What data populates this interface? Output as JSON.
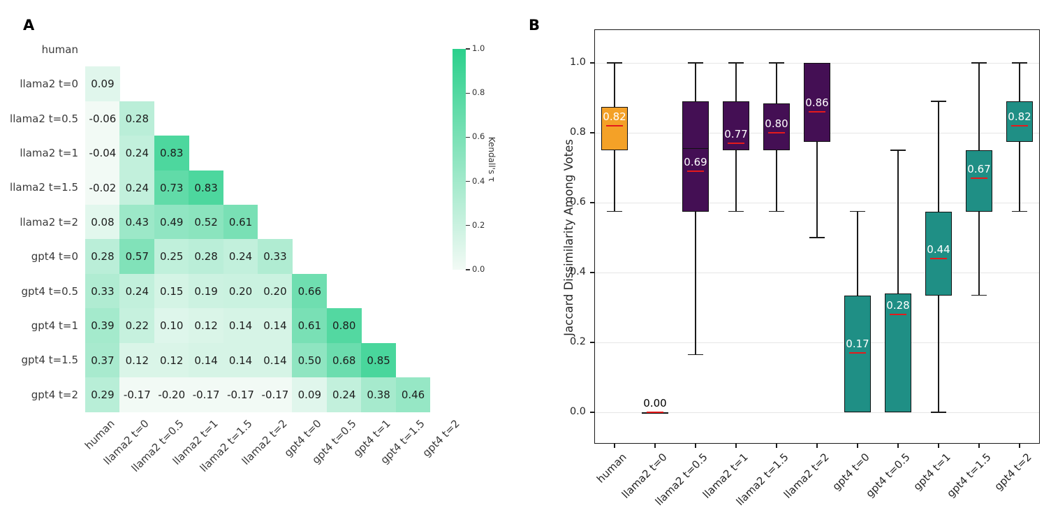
{
  "figure": {
    "panel_a_label": "A",
    "panel_b_label": "B"
  },
  "colors": {
    "cmap_min": "#f2faf5",
    "cmap_max": "#2bd08c",
    "mean_line": "#e41a1c",
    "grid": "#e6e6e6",
    "frame": "#1a1a1a",
    "box_border": "#111111",
    "human_box": "#f4a127",
    "llama2_box": "#440f54",
    "gpt4_box": "#1f8f85"
  },
  "chart_data": [
    {
      "type": "heatmap",
      "panel": "A",
      "labels": [
        "human",
        "llama2 t=0",
        "llama2 t=0.5",
        "llama2 t=1",
        "llama2 t=1.5",
        "llama2 t=2",
        "gpt4 t=0",
        "gpt4 t=0.5",
        "gpt4 t=1",
        "gpt4 t=1.5",
        "gpt4 t=2"
      ],
      "colorbar_label": "Kendall's τ",
      "colorbar_ticks": [
        "1.0",
        "0.8",
        "0.6",
        "0.4",
        "0.2",
        "0.0"
      ],
      "vmin": 0,
      "vmax": 1,
      "lower_triangle": [
        [],
        [
          0.09
        ],
        [
          -0.06,
          0.28
        ],
        [
          -0.04,
          0.24,
          0.83
        ],
        [
          -0.02,
          0.24,
          0.73,
          0.83
        ],
        [
          0.08,
          0.43,
          0.49,
          0.52,
          0.61
        ],
        [
          0.28,
          0.57,
          0.25,
          0.28,
          0.24,
          0.33
        ],
        [
          0.33,
          0.24,
          0.15,
          0.19,
          0.2,
          0.2,
          0.66
        ],
        [
          0.39,
          0.22,
          0.1,
          0.12,
          0.14,
          0.14,
          0.61,
          0.8
        ],
        [
          0.37,
          0.12,
          0.12,
          0.14,
          0.14,
          0.14,
          0.5,
          0.68,
          0.85
        ],
        [
          0.29,
          -0.17,
          -0.2,
          -0.17,
          -0.17,
          -0.17,
          0.09,
          0.24,
          0.38,
          0.46
        ]
      ]
    },
    {
      "type": "boxplot",
      "panel": "B",
      "ylabel": "Jaccard Dissimilarity Among Votes",
      "yticks": [
        "0.0",
        "0.2",
        "0.4",
        "0.6",
        "0.8",
        "1.0"
      ],
      "ylim": [
        -0.09,
        1.1
      ],
      "grid": "horizontal",
      "categories": [
        "human",
        "llama2 t=0",
        "llama2 t=0.5",
        "llama2 t=1",
        "llama2 t=1.5",
        "llama2 t=2",
        "gpt4 t=0",
        "gpt4 t=0.5",
        "gpt4 t=1",
        "gpt4 t=1.5",
        "gpt4 t=2"
      ],
      "boxes": [
        {
          "category": "human",
          "whislo": 0.575,
          "q1": 0.75,
          "median": null,
          "mean": 0.82,
          "q3": 0.875,
          "whishi": 1.0,
          "color_key": "human_box",
          "label": "0.82",
          "label_color": "#ffffff"
        },
        {
          "category": "llama2 t=0",
          "whislo": 0.0,
          "q1": 0.0,
          "median": 0.0,
          "mean": 0.0,
          "q3": 0.0,
          "whishi": 0.0,
          "color_key": "llama2_box",
          "label": "0.00",
          "label_color": "#000000"
        },
        {
          "category": "llama2 t=0.5",
          "whislo": 0.165,
          "q1": 0.575,
          "median": 0.755,
          "mean": 0.69,
          "q3": 0.89,
          "whishi": 1.0,
          "color_key": "llama2_box",
          "label": "0.69",
          "label_color": "#ffffff"
        },
        {
          "category": "llama2 t=1",
          "whislo": 0.575,
          "q1": 0.75,
          "median": null,
          "mean": 0.77,
          "q3": 0.89,
          "whishi": 1.0,
          "color_key": "llama2_box",
          "label": "0.77",
          "label_color": "#ffffff"
        },
        {
          "category": "llama2 t=1.5",
          "whislo": 0.575,
          "q1": 0.75,
          "median": null,
          "mean": 0.8,
          "q3": 0.885,
          "whishi": 1.0,
          "color_key": "llama2_box",
          "label": "0.80",
          "label_color": "#ffffff"
        },
        {
          "category": "llama2 t=2",
          "whislo": 0.5,
          "q1": 0.775,
          "median": null,
          "mean": 0.86,
          "q3": 1.0,
          "whishi": 1.0,
          "color_key": "llama2_box",
          "label": "0.86",
          "label_color": "#ffffff"
        },
        {
          "category": "gpt4 t=0",
          "whislo": 0.0,
          "q1": 0.0,
          "median": null,
          "mean": 0.17,
          "q3": 0.335,
          "whishi": 0.575,
          "color_key": "gpt4_box",
          "label": "0.17",
          "label_color": "#ffffff"
        },
        {
          "category": "gpt4 t=0.5",
          "whislo": 0.0,
          "q1": 0.0,
          "median": null,
          "mean": 0.28,
          "q3": 0.34,
          "whishi": 0.75,
          "color_key": "gpt4_box",
          "label": "0.28",
          "label_color": "#ffffff"
        },
        {
          "category": "gpt4 t=1",
          "whislo": 0.0,
          "q1": 0.335,
          "median": null,
          "mean": 0.44,
          "q3": 0.575,
          "whishi": 0.89,
          "color_key": "gpt4_box",
          "label": "0.44",
          "label_color": "#ffffff"
        },
        {
          "category": "gpt4 t=1.5",
          "whislo": 0.335,
          "q1": 0.575,
          "median": null,
          "mean": 0.67,
          "q3": 0.75,
          "whishi": 1.0,
          "color_key": "gpt4_box",
          "label": "0.67",
          "label_color": "#ffffff"
        },
        {
          "category": "gpt4 t=2",
          "whislo": 0.575,
          "q1": 0.775,
          "median": null,
          "mean": 0.82,
          "q3": 0.89,
          "whishi": 1.0,
          "color_key": "gpt4_box",
          "label": "0.82",
          "label_color": "#ffffff"
        }
      ]
    }
  ]
}
